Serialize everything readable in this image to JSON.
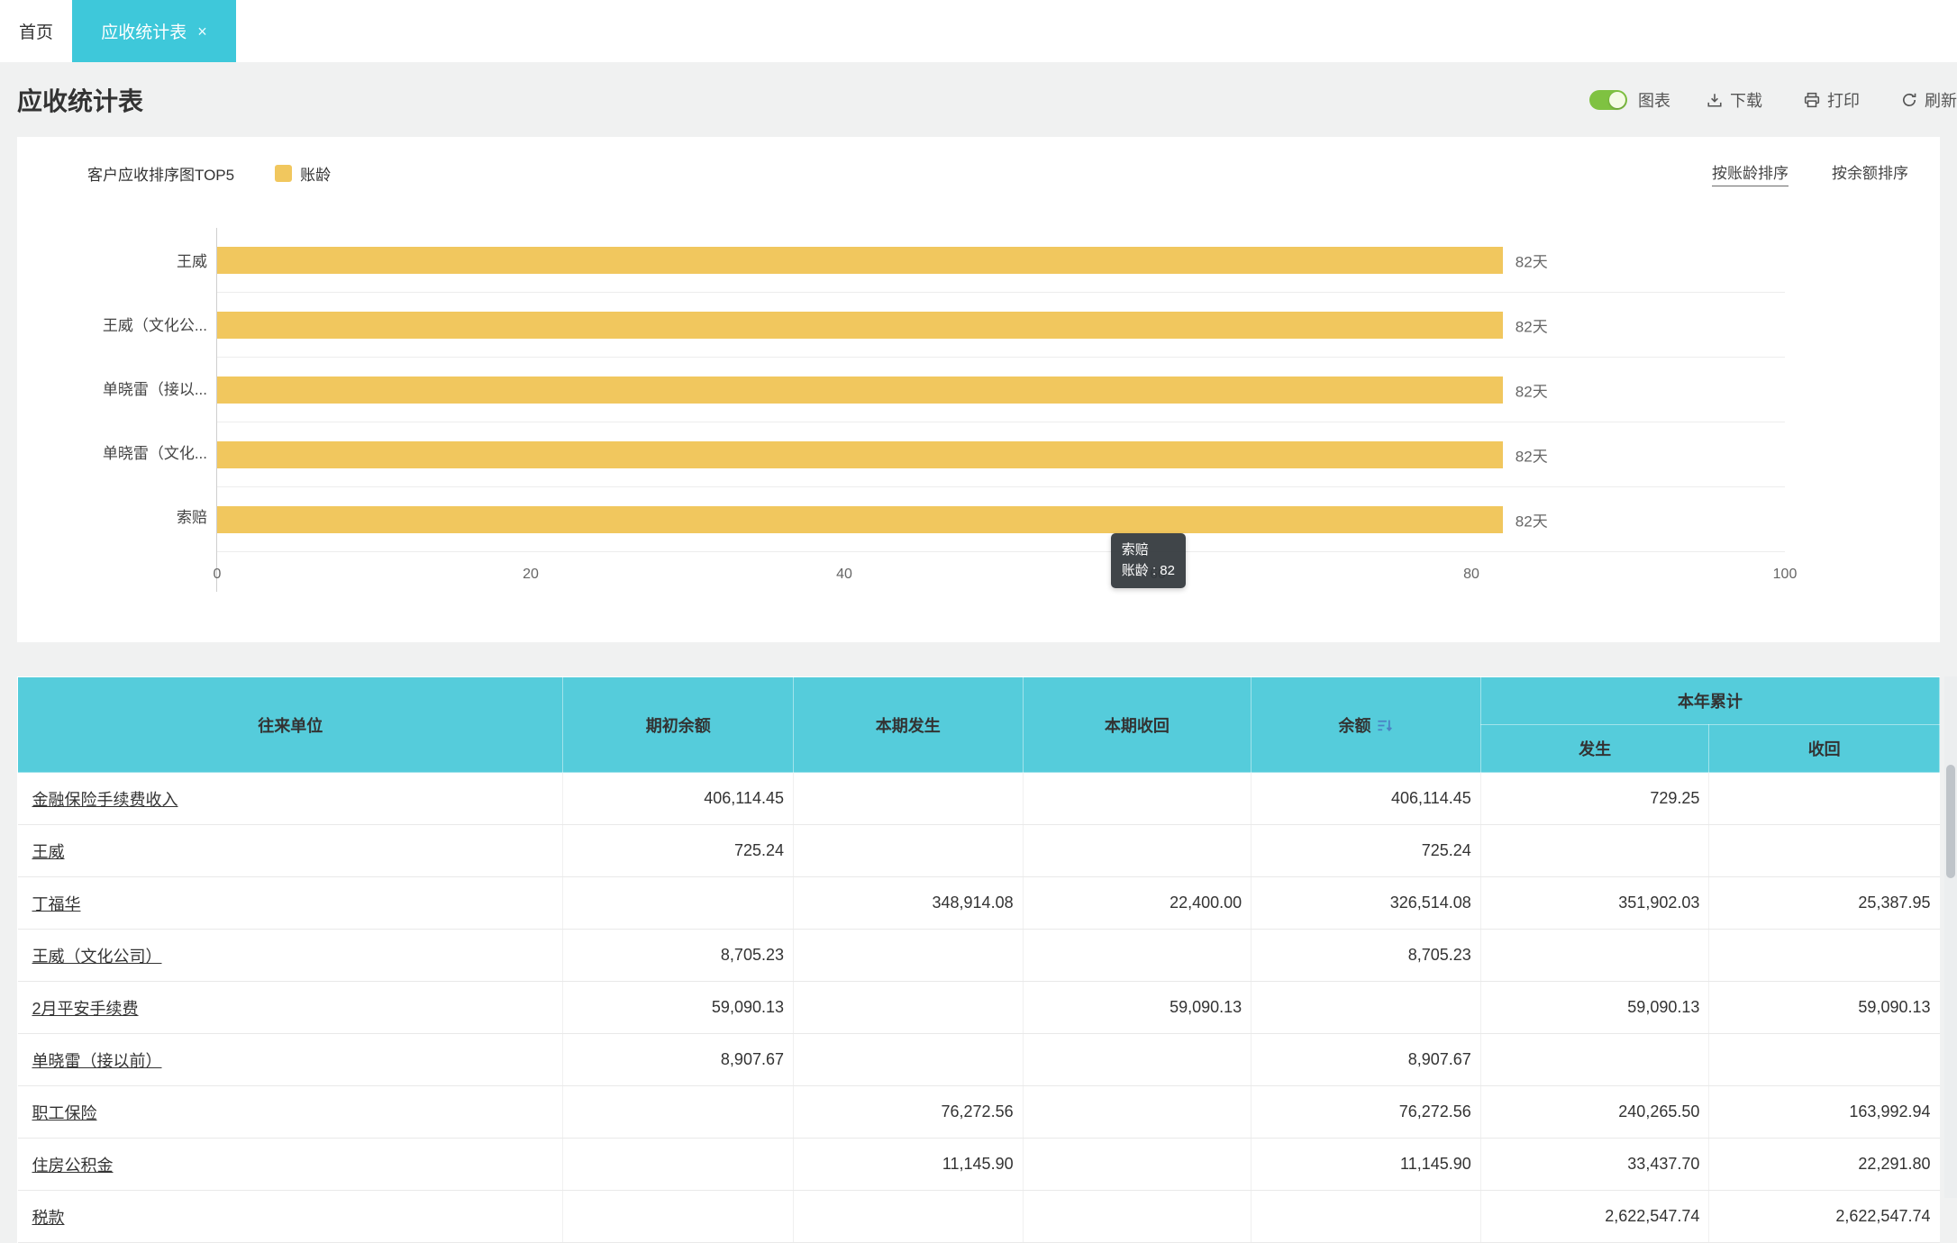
{
  "tabs": {
    "home": "首页",
    "active": "应收统计表",
    "close": "×"
  },
  "header": {
    "title": "应收统计表",
    "toggle_label": "图表",
    "download_label": "下载",
    "print_label": "打印",
    "refresh_label": "刷新"
  },
  "chart": {
    "title": "客户应收排序图TOP5",
    "legend_label": "账龄",
    "sort_by_age": "按账龄排序",
    "sort_by_balance": "按余额排序",
    "x_ticks": [
      "0",
      "20",
      "40",
      "60",
      "80",
      "100"
    ],
    "tooltip": {
      "title": "索赔",
      "line": "账龄 : 82"
    },
    "chart_data": {
      "type": "bar",
      "orientation": "horizontal",
      "title": "客户应收排序图TOP5",
      "series_name": "账龄",
      "categories": [
        "王威",
        "王威（文化公...",
        "单晓雷（接以...",
        "单晓雷（文化...",
        "索赔"
      ],
      "values": [
        82,
        82,
        82,
        82,
        82
      ],
      "value_labels": [
        "82天",
        "82天",
        "82天",
        "82天",
        "82天"
      ],
      "xlim": [
        0,
        100
      ],
      "bar_color": "#F1C75E",
      "grid": "horizontal-separators",
      "legend_position": "top"
    }
  },
  "table": {
    "headers": {
      "customer": "往来单位",
      "opening": "期初余额",
      "period_debit": "本期发生",
      "period_credit": "本期收回",
      "balance": "余额",
      "ytd_group": "本年累计",
      "ytd_debit": "发生",
      "ytd_credit": "收回"
    },
    "rows": [
      {
        "name": "金融保险手续费收入",
        "values": [
          "406,114.45",
          "",
          "",
          "406,114.45",
          "729.25",
          ""
        ]
      },
      {
        "name": "王威",
        "values": [
          "725.24",
          "",
          "",
          "725.24",
          "",
          ""
        ]
      },
      {
        "name": "丁福华",
        "values": [
          "",
          "348,914.08",
          "22,400.00",
          "326,514.08",
          "351,902.03",
          "25,387.95"
        ]
      },
      {
        "name": "王威（文化公司）",
        "values": [
          "8,705.23",
          "",
          "",
          "8,705.23",
          "",
          ""
        ]
      },
      {
        "name": "2月平安手续费",
        "values": [
          "59,090.13",
          "",
          "59,090.13",
          "",
          "59,090.13",
          "59,090.13"
        ]
      },
      {
        "name": "单晓雷（接以前）",
        "values": [
          "8,907.67",
          "",
          "",
          "8,907.67",
          "",
          ""
        ]
      },
      {
        "name": "职工保险",
        "values": [
          "",
          "76,272.56",
          "",
          "76,272.56",
          "240,265.50",
          "163,992.94"
        ]
      },
      {
        "name": "住房公积金",
        "values": [
          "",
          "11,145.90",
          "",
          "11,145.90",
          "33,437.70",
          "22,291.80"
        ]
      },
      {
        "name": "税款",
        "values": [
          "",
          "",
          "",
          "",
          "2,622,547.74",
          "2,622,547.74"
        ]
      }
    ]
  },
  "colors": {
    "accent_cyan": "#3EC8DA",
    "table_header_cyan": "#55CCDB",
    "bar_yellow": "#F1C75E",
    "toggle_green": "#7FC241"
  }
}
